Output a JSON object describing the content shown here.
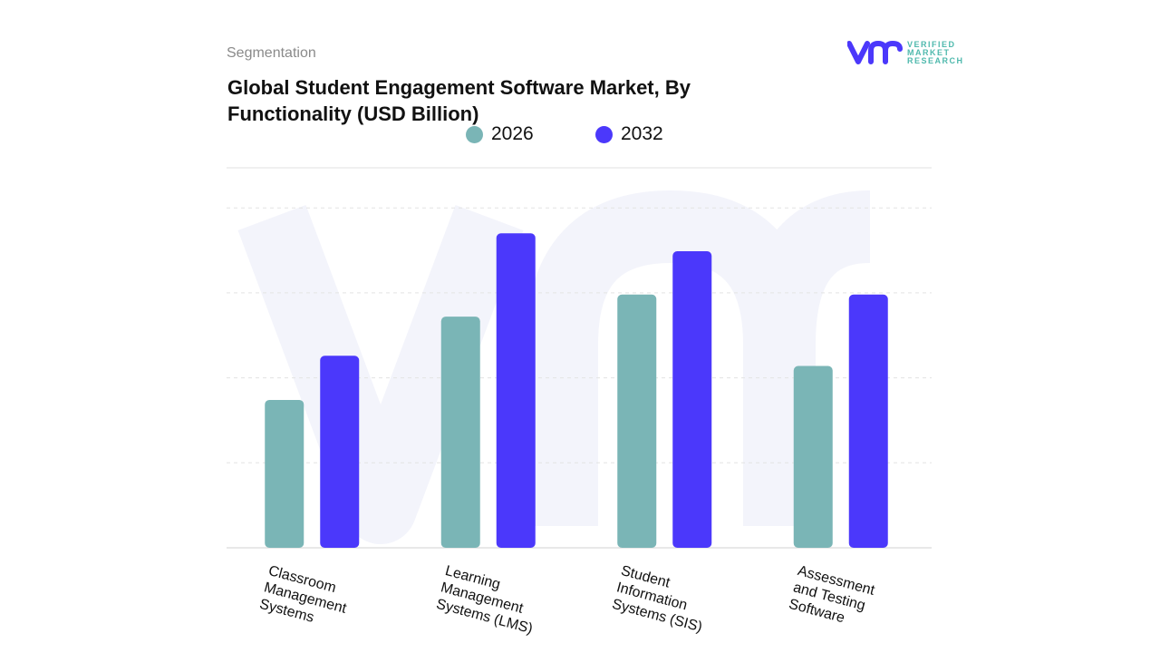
{
  "header": {
    "segment_label": "Segmentation",
    "title": "Global Student Engagement Software Market, By Functionality (USD Billion)"
  },
  "logo": {
    "brand": "VERIFIED MARKET RESEARCH",
    "lines": [
      "VERIFIED",
      "MARKET",
      "RESEARCH"
    ]
  },
  "colors": {
    "series_2026": "#7ab5b6",
    "series_2032": "#4b38fb",
    "logo_purple": "#4b38fb",
    "logo_teal": "#4fb9ad",
    "grid": "#e6e6e6"
  },
  "chart_data": {
    "type": "bar",
    "title": "Global Student Engagement Software Market, By Functionality (USD Billion)",
    "categories": [
      "Classroom Management Systems",
      "Learning Management Systems (LMS)",
      "Student Information Systems (SIS)",
      "Assessment and Testing Software"
    ],
    "series": [
      {
        "name": "2026",
        "values": [
          1.74,
          2.72,
          2.98,
          2.14
        ]
      },
      {
        "name": "2032",
        "values": [
          2.26,
          3.7,
          3.49,
          2.98
        ]
      }
    ],
    "ylim": [
      0,
      4.5
    ],
    "y_ticks_labeled": false,
    "value_unit": "relative (estimated from gridlines; no axis values printed)",
    "grid": true,
    "legend_position": "top-center"
  }
}
